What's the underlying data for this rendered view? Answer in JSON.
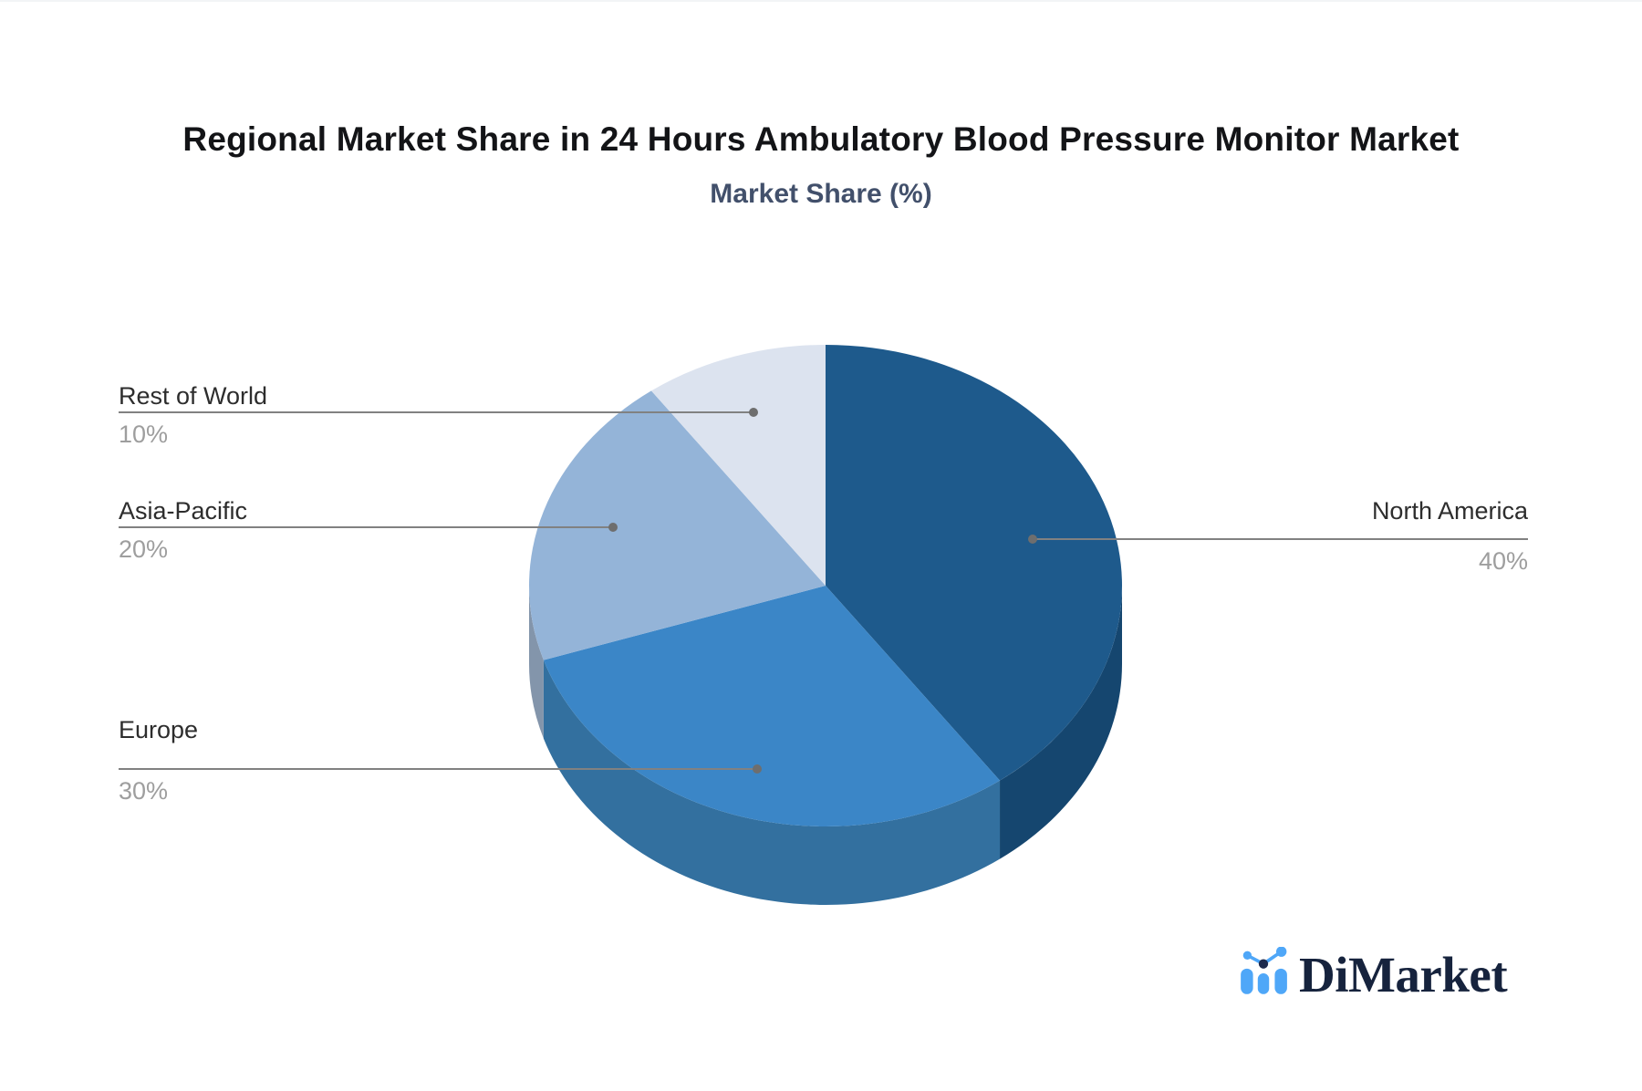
{
  "title": "Regional Market Share in 24 Hours Ambulatory Blood Pressure Monitor Market",
  "subtitle": "Market Share (%)",
  "chart_data": {
    "type": "pie",
    "style": "3d",
    "unit": "%",
    "start_angle_deg": 0,
    "direction": "clockwise",
    "title": "Regional Market Share in 24 Hours Ambulatory Blood Pressure Monitor Market",
    "subtitle": "Market Share (%)",
    "legend_position": "callout-labels",
    "series": [
      {
        "name": "North America",
        "value": 40,
        "color": "#1e5a8c",
        "side_color": "#15466f"
      },
      {
        "name": "Europe",
        "value": 30,
        "color": "#3b86c7",
        "side_color": "#33709f"
      },
      {
        "name": "Asia-Pacific",
        "value": 20,
        "color": "#94b4d8",
        "side_color": "#8395ab"
      },
      {
        "name": "Rest of World",
        "value": 10,
        "color": "#dce3ef",
        "side_color": "#c7d1e0"
      }
    ]
  },
  "callouts": {
    "north_america": {
      "label": "North America",
      "value": "40%"
    },
    "europe": {
      "label": "Europe",
      "value": "30%"
    },
    "asia_pacific": {
      "label": "Asia-Pacific",
      "value": "20%"
    },
    "rest_of_world": {
      "label": "Rest of World",
      "value": "10%"
    }
  },
  "logo": {
    "name": "DiMarket",
    "icon": "bar-chart-trend-icon",
    "accent_color": "#4fa7f8",
    "dot_color": "#1e2b4d",
    "text_color": "#16233d"
  },
  "colors": {
    "callout_line": "#818181",
    "callout_dot": "#6e6e6e",
    "title": "#131417",
    "subtitle": "#42506b"
  }
}
